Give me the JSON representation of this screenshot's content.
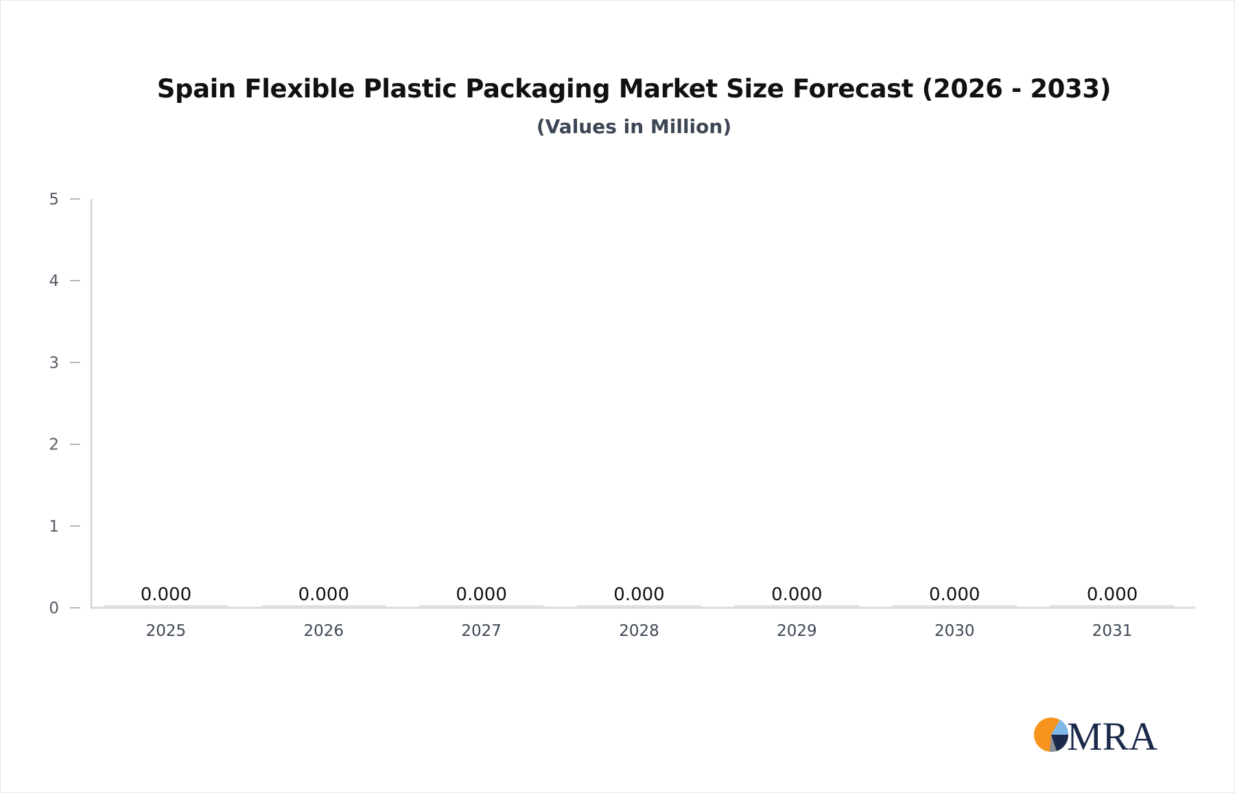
{
  "chart_data": {
    "type": "bar",
    "title": "Spain Flexible Plastic Packaging Market Size Forecast (2026 - 2033)",
    "subtitle": "(Values in Million)",
    "categories": [
      "2025",
      "2026",
      "2027",
      "2028",
      "2029",
      "2030",
      "2031"
    ],
    "values": [
      0,
      0,
      0,
      0,
      0,
      0,
      0
    ],
    "data_labels": [
      "0.000",
      "0.000",
      "0.000",
      "0.000",
      "0.000",
      "0.000",
      "0.000"
    ],
    "yticks": [
      "0",
      "1",
      "2",
      "3",
      "4",
      "5"
    ],
    "ylim": [
      0,
      5
    ],
    "xlabel": "",
    "ylabel": "",
    "grid": false,
    "legend": "none",
    "bar_color": "#dfe3e8"
  },
  "logo": {
    "text": "MRA",
    "colors": {
      "orange": "#f7941d",
      "navy": "#1b2a4a",
      "light_blue": "#7fb7e6",
      "gray": "#8a8f99"
    }
  }
}
